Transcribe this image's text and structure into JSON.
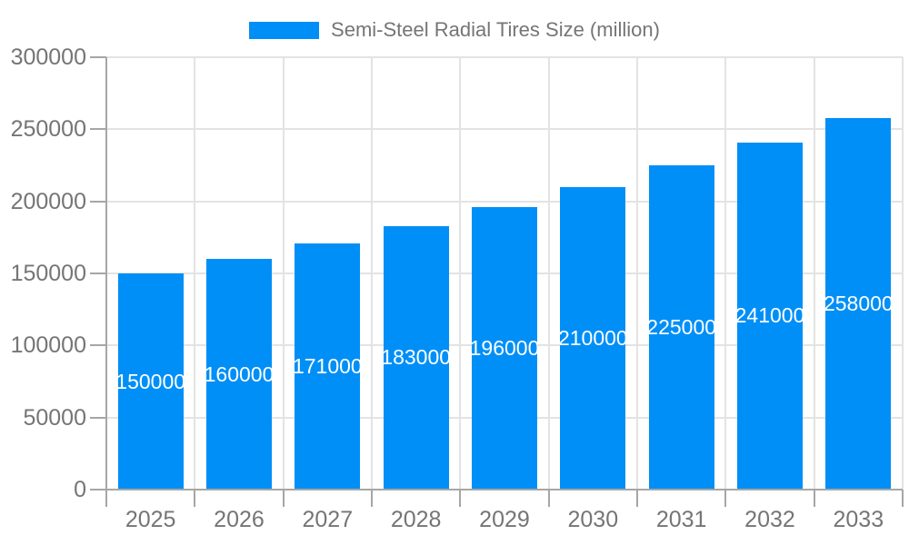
{
  "legend": {
    "label": "Semi-Steel Radial Tires Size (million)"
  },
  "chart_data": {
    "type": "bar",
    "title": "",
    "categories": [
      "2025",
      "2026",
      "2027",
      "2028",
      "2029",
      "2030",
      "2031",
      "2032",
      "2033"
    ],
    "series": [
      {
        "name": "Semi-Steel Radial Tires Size (million)",
        "values": [
          150000,
          160000,
          171000,
          183000,
          196000,
          210000,
          225000,
          241000,
          258000
        ]
      }
    ],
    "value_labels": [
      "150000",
      "160000",
      "171000",
      "183000",
      "196000",
      "210000",
      "225000",
      "241000",
      "258000"
    ],
    "xlabel": "",
    "ylabel": "",
    "ylim": [
      0,
      300000
    ],
    "ytick_step": 50000,
    "ytick_labels": [
      "0",
      "50000",
      "100000",
      "150000",
      "200000",
      "250000",
      "300000"
    ],
    "grid": true,
    "legend_position": "top-center",
    "colors": {
      "bar": "#008ff7",
      "value_label": "#ffffff",
      "axis_text": "#757575",
      "grid_line": "#e3e3e3",
      "axis_line": "#a6a6a6",
      "background": "#ffffff"
    }
  }
}
